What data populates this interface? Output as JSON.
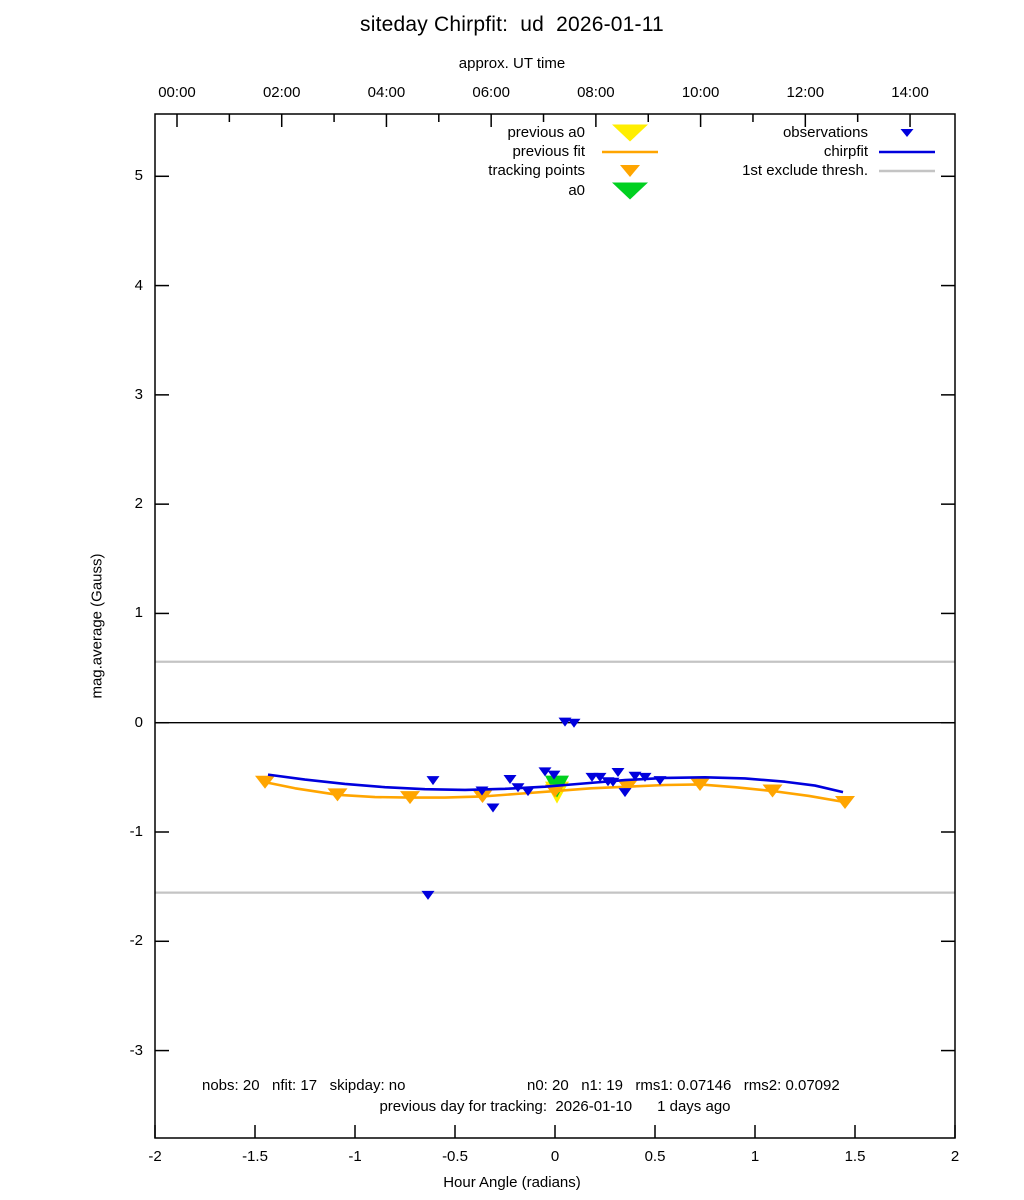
{
  "chart_data": {
    "type": "scatter",
    "title": "siteday Chirpfit:  ud  2026-01-11",
    "top_axis": {
      "label": "approx. UT time",
      "tick_labels": [
        "00:00",
        "02:00",
        "04:00",
        "06:00",
        "08:00",
        "10:00",
        "12:00",
        "14:00"
      ],
      "labeled_hours": [
        0,
        2,
        4,
        6,
        8,
        10,
        12,
        14
      ],
      "minor_hours": [
        1,
        3,
        5,
        7,
        9,
        11,
        13
      ],
      "ha_at_hour0": -1.89,
      "rad_per_hour": 0.2618
    },
    "x_axis": {
      "label": "Hour Angle (radians)",
      "range": [
        -2,
        2
      ],
      "tick_values": [
        -2,
        -1.5,
        -1,
        -0.5,
        0,
        0.5,
        1,
        1.5,
        2
      ],
      "tick_labels": [
        "-2",
        "-1.5",
        "-1",
        "-0.5",
        "0",
        "0.5",
        "1",
        "1.5",
        "2"
      ]
    },
    "y_axis": {
      "label": "mag.average (Gauss)",
      "range": [
        -3.8,
        5.57
      ],
      "tick_values": [
        5,
        4,
        3,
        2,
        1,
        0,
        -1,
        -2,
        -3
      ],
      "tick_labels": [
        "5",
        "4",
        "3",
        "2",
        "1",
        "0",
        "-1",
        "-2",
        "-3"
      ],
      "zero_line": 0
    },
    "exclude_thresholds": [
      0.558,
      -1.555
    ],
    "series": {
      "previous_a0": {
        "label": "previous a0",
        "color": "#ffee00",
        "marker": "triangle",
        "marker_size": "large",
        "point": [
          0.01,
          -0.64
        ]
      },
      "a0": {
        "label": "a0",
        "color": "#00d020",
        "marker": "triangle",
        "marker_size": "large",
        "point": [
          0.01,
          -0.585
        ]
      },
      "previous_fit": {
        "label": "previous fit",
        "color": "#ffa500",
        "marker": "line",
        "line": [
          [
            -1.46,
            -0.54
          ],
          [
            -1.3,
            -0.6
          ],
          [
            -1.0875,
            -0.66
          ],
          [
            -0.9,
            -0.68
          ],
          [
            -0.725,
            -0.685
          ],
          [
            -0.55,
            -0.685
          ],
          [
            -0.3625,
            -0.675
          ],
          [
            -0.18,
            -0.65
          ],
          [
            0,
            -0.625
          ],
          [
            0.18,
            -0.6
          ],
          [
            0.3625,
            -0.585
          ],
          [
            0.55,
            -0.57
          ],
          [
            0.725,
            -0.565
          ],
          [
            0.9,
            -0.59
          ],
          [
            1.0875,
            -0.625
          ],
          [
            1.27,
            -0.67
          ],
          [
            1.46,
            -0.73
          ]
        ]
      },
      "tracking_points": {
        "label": "tracking points",
        "color": "#ffa500",
        "marker": "triangle",
        "marker_size": "medium",
        "points": [
          [
            -1.45,
            -0.545
          ],
          [
            -1.0875,
            -0.66
          ],
          [
            -0.725,
            -0.685
          ],
          [
            -0.3625,
            -0.675
          ],
          [
            0,
            -0.625
          ],
          [
            0.3625,
            -0.585
          ],
          [
            0.725,
            -0.565
          ],
          [
            1.0875,
            -0.625
          ],
          [
            1.45,
            -0.73
          ]
        ]
      },
      "chirpfit": {
        "label": "chirpfit",
        "color": "#0000dd",
        "marker": "line",
        "line": [
          [
            -1.435,
            -0.475
          ],
          [
            -1.25,
            -0.52
          ],
          [
            -1.05,
            -0.56
          ],
          [
            -0.85,
            -0.59
          ],
          [
            -0.65,
            -0.608
          ],
          [
            -0.45,
            -0.615
          ],
          [
            -0.25,
            -0.605
          ],
          [
            -0.05,
            -0.585
          ],
          [
            0.15,
            -0.555
          ],
          [
            0.35,
            -0.525
          ],
          [
            0.55,
            -0.505
          ],
          [
            0.75,
            -0.5
          ],
          [
            0.95,
            -0.51
          ],
          [
            1.15,
            -0.54
          ],
          [
            1.3,
            -0.575
          ],
          [
            1.44,
            -0.635
          ]
        ]
      },
      "observations": {
        "label": "observations",
        "color": "#0000dd",
        "marker": "triangle",
        "marker_size": "small",
        "points": [
          [
            -0.635,
            -1.58
          ],
          [
            -0.61,
            -0.53
          ],
          [
            -0.365,
            -0.625
          ],
          [
            -0.31,
            -0.78
          ],
          [
            -0.225,
            -0.52
          ],
          [
            -0.185,
            -0.595
          ],
          [
            -0.135,
            -0.63
          ],
          [
            -0.05,
            -0.45
          ],
          [
            -0.005,
            -0.48
          ],
          [
            0.05,
            0.005
          ],
          [
            0.095,
            -0.005
          ],
          [
            0.185,
            -0.5
          ],
          [
            0.225,
            -0.5
          ],
          [
            0.265,
            -0.54
          ],
          [
            0.29,
            -0.545
          ],
          [
            0.315,
            -0.455
          ],
          [
            0.35,
            -0.64
          ],
          [
            0.4,
            -0.49
          ],
          [
            0.45,
            -0.5
          ],
          [
            0.525,
            -0.53
          ]
        ]
      },
      "exclude_threshold": {
        "label": "1st exclude thresh.",
        "color": "#c4c4c4",
        "marker": "line"
      }
    },
    "legend": {
      "left": [
        "previous_a0",
        "previous_fit",
        "tracking_points",
        "a0"
      ],
      "right": [
        "observations",
        "chirpfit",
        "exclude_threshold"
      ]
    },
    "stats": {
      "line1_left": "nobs: 20   nfit: 17   skipday: no",
      "line1_right": "n0: 20   n1: 19   rms1: 0.07146   rms2: 0.07092",
      "line2": "previous day for tracking:  2026-01-10      1 days ago"
    }
  }
}
